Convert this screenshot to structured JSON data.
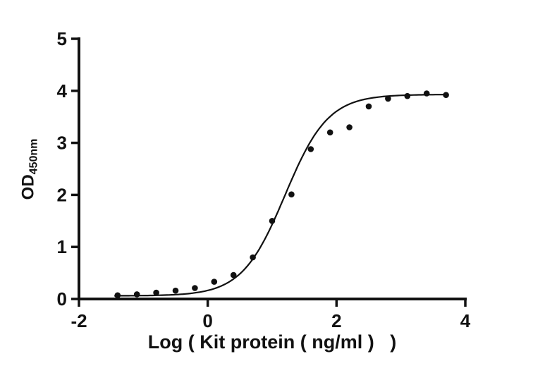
{
  "chart_data": {
    "type": "scatter",
    "title": "",
    "xlabel": "Log ( Kit protein ( ng/ml )   )",
    "ylabel": "OD",
    "ylabel_sub": "450nm",
    "xlim": [
      -2,
      4
    ],
    "ylim": [
      0,
      5
    ],
    "xticks": [
      -2,
      0,
      2,
      4
    ],
    "yticks": [
      0,
      1,
      2,
      3,
      4,
      5
    ],
    "grid": false,
    "legend_position": "none",
    "marker_color": "#111111",
    "line_color": "#111111",
    "axis_color": "#111111",
    "points": [
      [
        -1.4,
        0.07
      ],
      [
        -1.1,
        0.09
      ],
      [
        -0.8,
        0.12
      ],
      [
        -0.5,
        0.16
      ],
      [
        -0.2,
        0.21
      ],
      [
        0.1,
        0.33
      ],
      [
        0.4,
        0.46
      ],
      [
        0.7,
        0.8
      ],
      [
        1.0,
        1.5
      ],
      [
        1.3,
        2.01
      ],
      [
        1.6,
        2.88
      ],
      [
        1.9,
        3.2
      ],
      [
        2.2,
        3.3
      ],
      [
        2.5,
        3.7
      ],
      [
        2.8,
        3.85
      ],
      [
        3.1,
        3.9
      ],
      [
        3.4,
        3.95
      ],
      [
        3.7,
        3.92
      ]
    ],
    "fit": {
      "model": "4PL",
      "bottom": 0.06,
      "top": 3.93,
      "logEC50": 1.2,
      "hillslope": 1.3,
      "curve_x_range": [
        -1.45,
        3.72
      ]
    }
  }
}
